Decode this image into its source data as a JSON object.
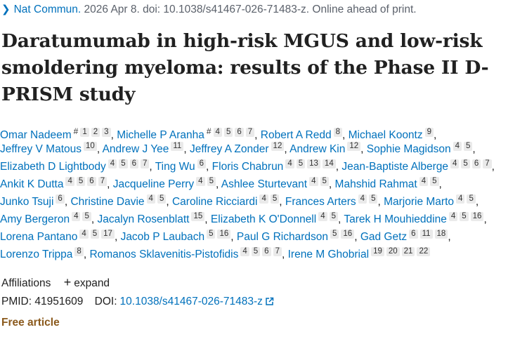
{
  "citation": {
    "journal": "Nat Commun.",
    "details": "2026 Apr 8. doi: 10.1038/s41467-026-71483-z. Online ahead of print."
  },
  "title": "Daratumumab in high-risk MGUS and low-risk smoldering myeloma: results of the Phase II D-PRISM study",
  "authors": [
    {
      "name": "Omar Nadeem",
      "sym": "#",
      "affs": [
        "1",
        "2",
        "3"
      ]
    },
    {
      "name": "Michelle P Aranha",
      "sym": "#",
      "affs": [
        "4",
        "5",
        "6",
        "7"
      ]
    },
    {
      "name": "Robert A Redd",
      "affs": [
        "8"
      ]
    },
    {
      "name": "Michael Koontz",
      "affs": [
        "9"
      ]
    },
    {
      "name": "Jeffrey V Matous",
      "affs": [
        "10"
      ]
    },
    {
      "name": "Andrew J Yee",
      "affs": [
        "11"
      ]
    },
    {
      "name": "Jeffrey A Zonder",
      "affs": [
        "12"
      ]
    },
    {
      "name": "Andrew Kin",
      "affs": [
        "12"
      ]
    },
    {
      "name": "Sophie Magidson",
      "affs": [
        "4",
        "5"
      ]
    },
    {
      "name": "Elizabeth D Lightbody",
      "affs": [
        "4",
        "5",
        "6",
        "7"
      ]
    },
    {
      "name": "Ting Wu",
      "affs": [
        "6"
      ]
    },
    {
      "name": "Floris Chabrun",
      "affs": [
        "4",
        "5",
        "13",
        "14"
      ]
    },
    {
      "name": "Jean-Baptiste Alberge",
      "affs": [
        "4",
        "5",
        "6",
        "7"
      ]
    },
    {
      "name": "Ankit K Dutta",
      "affs": [
        "4",
        "5",
        "6",
        "7"
      ]
    },
    {
      "name": "Jacqueline Perry",
      "affs": [
        "4",
        "5"
      ]
    },
    {
      "name": "Ashlee Sturtevant",
      "affs": [
        "4",
        "5"
      ]
    },
    {
      "name": "Mahshid Rahmat",
      "affs": [
        "4",
        "5"
      ]
    },
    {
      "name": "Junko Tsuji",
      "affs": [
        "6"
      ]
    },
    {
      "name": "Christine Davie",
      "affs": [
        "4",
        "5"
      ]
    },
    {
      "name": "Caroline Ricciardi",
      "affs": [
        "4",
        "5"
      ]
    },
    {
      "name": "Frances Arters",
      "affs": [
        "4",
        "5"
      ]
    },
    {
      "name": "Marjorie Marto",
      "affs": [
        "4",
        "5"
      ]
    },
    {
      "name": "Amy Bergeron",
      "affs": [
        "4",
        "5"
      ]
    },
    {
      "name": "Jacalyn Rosenblatt",
      "affs": [
        "15"
      ]
    },
    {
      "name": "Elizabeth K O'Donnell",
      "affs": [
        "4",
        "5"
      ]
    },
    {
      "name": "Tarek H Mouhieddine",
      "affs": [
        "4",
        "5",
        "16"
      ]
    },
    {
      "name": "Lorena Pantano",
      "affs": [
        "4",
        "5",
        "17"
      ]
    },
    {
      "name": "Jacob P Laubach",
      "affs": [
        "5",
        "16"
      ]
    },
    {
      "name": "Paul G Richardson",
      "affs": [
        "5",
        "16"
      ]
    },
    {
      "name": "Gad Getz",
      "affs": [
        "6",
        "11",
        "18"
      ]
    },
    {
      "name": "Lorenzo Trippa",
      "affs": [
        "8"
      ]
    },
    {
      "name": "Romanos Sklavenitis-Pistofidis",
      "affs": [
        "4",
        "5",
        "6",
        "7"
      ]
    },
    {
      "name": "Irene M Ghobrial",
      "affs": [
        "19",
        "20",
        "21",
        "22"
      ]
    }
  ],
  "author_lines": [
    [
      0,
      1,
      2,
      3
    ],
    [
      4,
      5,
      6,
      7,
      8
    ],
    [
      9,
      10,
      11,
      12
    ],
    [
      13,
      14,
      15,
      16
    ],
    [
      17,
      18,
      19,
      20,
      21
    ],
    [
      22,
      23,
      24,
      25
    ],
    [
      26,
      27,
      28,
      29
    ],
    [
      30,
      31,
      32
    ]
  ],
  "affiliations": {
    "label": "Affiliations",
    "expand_icon": "plus-icon",
    "expand_label": "expand"
  },
  "ids": {
    "pmid_label": "PMID:",
    "pmid": "41951609",
    "doi_label": "DOI:",
    "doi": "10.1038/s41467-026-71483-z",
    "doi_icon": "external-link-icon"
  },
  "free_article": "Free article",
  "colors": {
    "link": "#0071bc",
    "free_article": "#8b5a1d",
    "aff_badge_bg": "#eaeaea"
  }
}
